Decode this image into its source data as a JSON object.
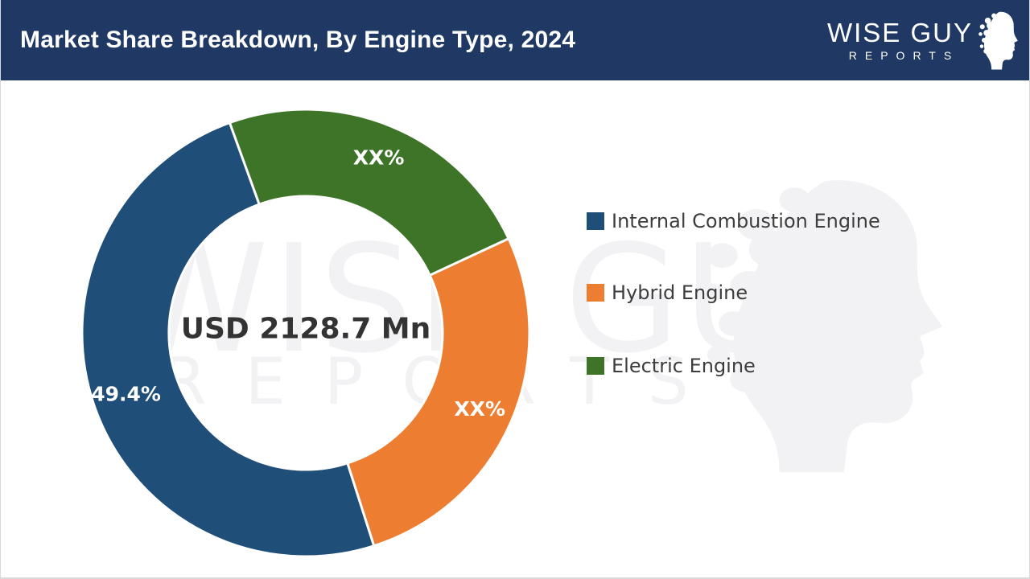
{
  "header": {
    "title": "Market Share Breakdown, By Engine Type, 2024",
    "logo": {
      "wordmark": "WISE GUY",
      "subtext": "REPORTS"
    }
  },
  "watermark": {
    "wordmark": "WISE GUY",
    "subtext": "REPORTS"
  },
  "chart_data": {
    "type": "donut",
    "title": "Market Share Breakdown, By Engine Type, 2024",
    "center_label": "USD 2128.7 Mn",
    "start_angle_deg": -19.9,
    "slices": [
      {
        "name": "Electric Engine",
        "pct": 23.6,
        "label": "XX%",
        "color": "#3E7428"
      },
      {
        "name": "Hybrid Engine",
        "pct": 27.0,
        "label": "XX%",
        "color": "#ED7D31"
      },
      {
        "name": "Internal Combustion Engine",
        "pct": 49.4,
        "label": "49.4%",
        "color": "#1F4E79"
      }
    ],
    "legend": [
      {
        "label": "Internal Combustion Engine",
        "color": "#1F4E79"
      },
      {
        "label": "Hybrid Engine",
        "color": "#ED7D31"
      },
      {
        "label": "Electric Engine",
        "color": "#3E7428"
      }
    ],
    "legend_position": "right",
    "colors": {
      "header_bg": "#1f3864",
      "watermark": "#f2f2f4",
      "center_text": "#333333"
    }
  }
}
